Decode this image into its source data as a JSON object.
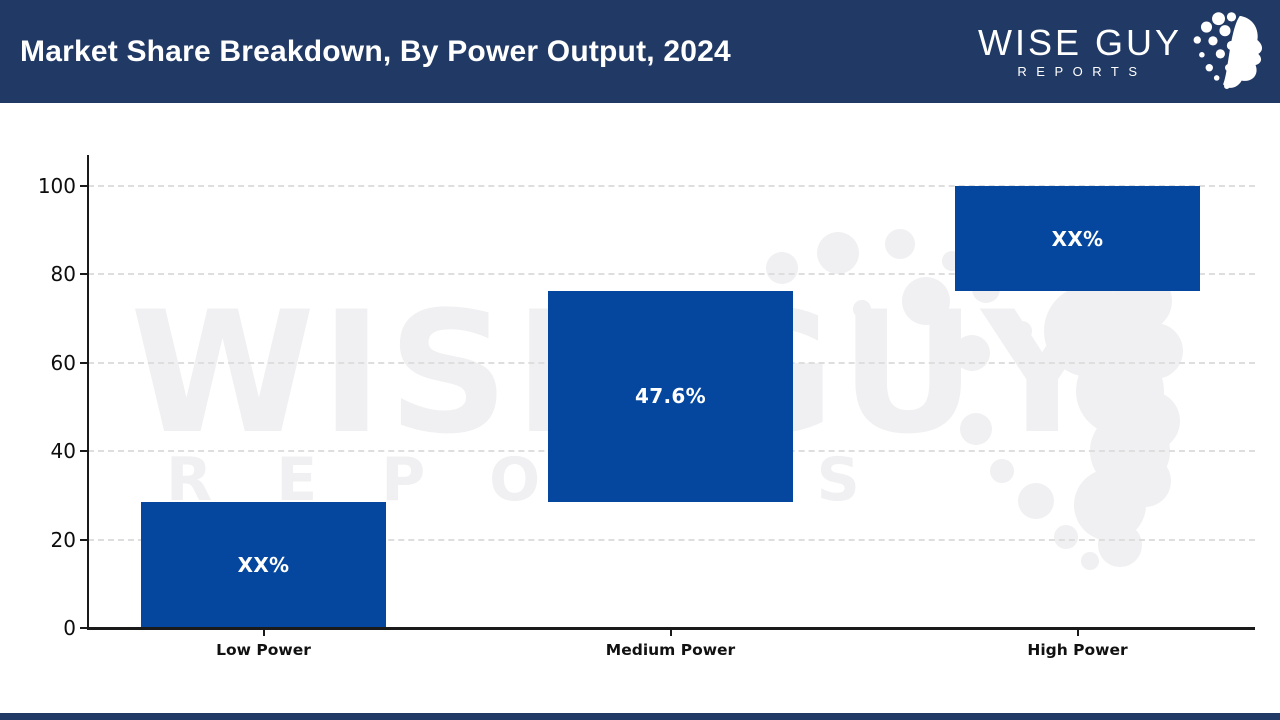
{
  "header": {
    "title": "Market Share Breakdown, By Power Output, 2024",
    "bg_color": "#213965",
    "logo": {
      "line1": "WISE GUY",
      "line2": "REPORTS"
    }
  },
  "watermark": {
    "line1": "WISE GUY",
    "line2": "REPORTS",
    "color": "#f0f0f2"
  },
  "chart_data": {
    "type": "bar",
    "subtype": "waterfall",
    "title": "Market Share Breakdown, By Power Output, 2024",
    "categories": [
      "Low Power",
      "Medium Power",
      "High Power"
    ],
    "bars": [
      {
        "category": "Low Power",
        "start": 0,
        "end": 28.6,
        "label": "XX%"
      },
      {
        "category": "Medium Power",
        "start": 28.6,
        "end": 76.2,
        "label": "47.6%"
      },
      {
        "category": "High Power",
        "start": 76.2,
        "end": 100,
        "label": "XX%"
      }
    ],
    "xlabel": "",
    "ylabel": "",
    "ylim": [
      0,
      100
    ],
    "yticks": [
      0,
      20,
      40,
      60,
      80,
      100
    ],
    "grid": "horizontal-dashed",
    "legend": "none",
    "bar_color": "#05479e",
    "bar_label_color": "#ffffff",
    "axis_color": "#1a1a1a",
    "gridline_color": "#dedede"
  },
  "footer": {
    "bar_color": "#213965"
  }
}
